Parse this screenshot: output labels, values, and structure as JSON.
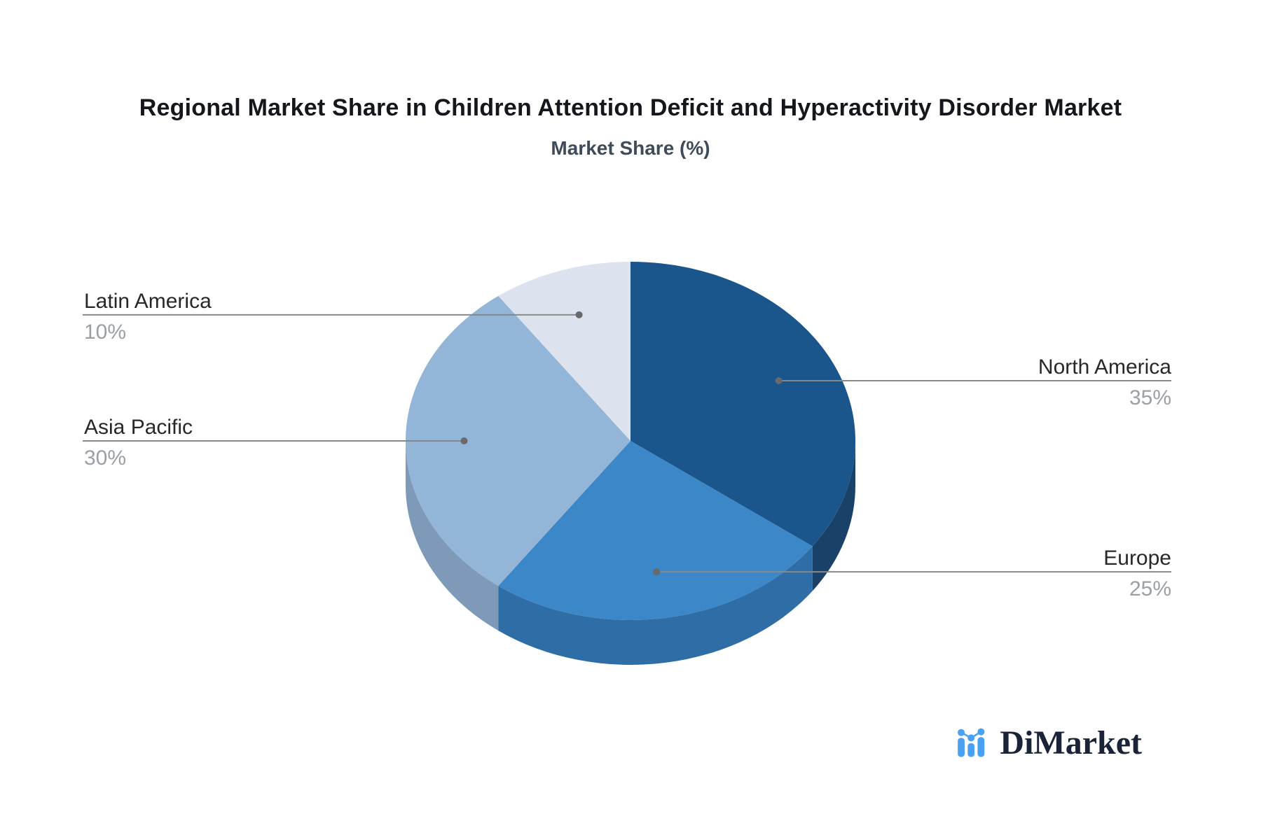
{
  "page": {
    "title": "Regional Market Share in Children Attention Deficit and Hyperactivity Disorder Market",
    "subtitle": "Market Share (%)",
    "background_color": "#ffffff"
  },
  "brand": {
    "name": "DiMarket",
    "text_color": "#1b2437",
    "icon_color": "#4aa0f2"
  },
  "chart_data": {
    "type": "pie",
    "style": "pie-3d",
    "title": "Market Share (%)",
    "unit": "%",
    "start_angle_deg": -90,
    "direction": "clockwise",
    "legend_position": "callout-labels",
    "slices": [
      {
        "label": "North America",
        "value": 35,
        "display": "35%",
        "color": "#1a558b",
        "side_color": "#1a4168"
      },
      {
        "label": "Europe",
        "value": 25,
        "display": "25%",
        "color": "#3c87c7",
        "side_color": "#2f6da6"
      },
      {
        "label": "Asia Pacific",
        "value": 30,
        "display": "30%",
        "color": "#92b5d8",
        "side_color": "#7e9ab8"
      },
      {
        "label": "Latin America",
        "value": 10,
        "display": "10%",
        "color": "#dce3ee",
        "side_color": "#c2ccd9"
      }
    ],
    "callout": {
      "line_color": "#87888a",
      "dot_color": "#68696b",
      "label_color": "#26282b",
      "value_color": "#9aa0a6"
    }
  }
}
